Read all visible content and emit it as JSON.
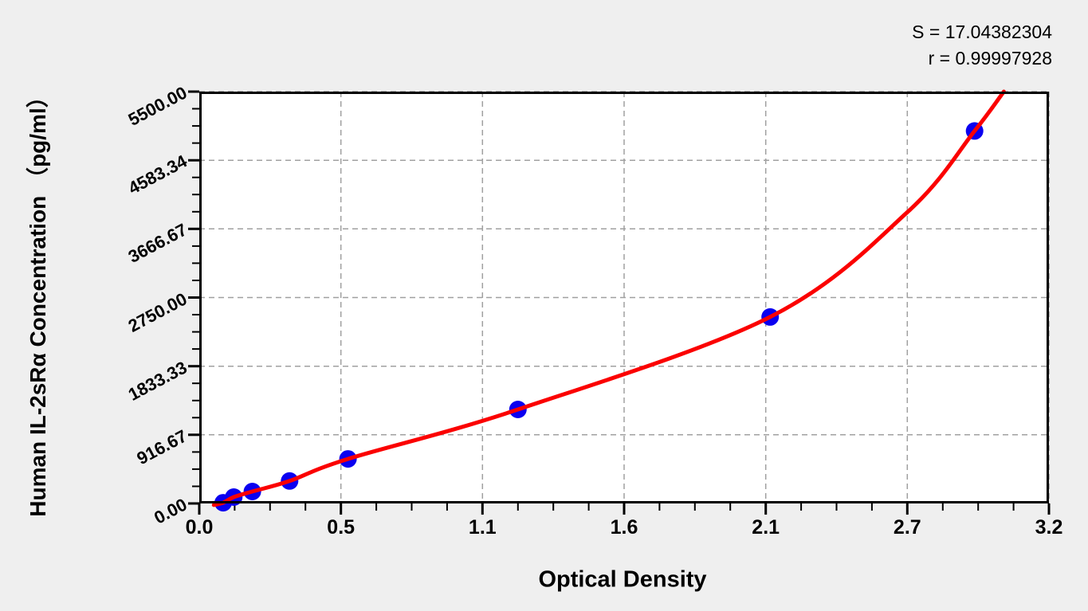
{
  "page": {
    "background_color": "#efefef",
    "plot_background_color": "#ffffff"
  },
  "chart_data": {
    "type": "scatter",
    "title": "",
    "xlabel": "Optical Density",
    "ylabel": "Human IL-2sRα Concentration （pg/ml）",
    "xlim": [
      0,
      3.2
    ],
    "ylim": [
      0,
      5500
    ],
    "x_ticks": {
      "values": [
        0,
        0.5333,
        1.0667,
        1.6,
        2.1333,
        2.6667,
        3.2
      ],
      "labels": [
        "0.0",
        "0.5",
        "1.1",
        "1.6",
        "2.1",
        "2.7",
        "3.2"
      ]
    },
    "y_ticks": {
      "values": [
        0,
        916.67,
        1833.33,
        2750,
        3666.67,
        4583.34,
        5500
      ],
      "labels": [
        "0.00",
        "916.67",
        "1833.33",
        "2750.00",
        "3666.67",
        "4583.34",
        "5500.00"
      ]
    },
    "minor_ticks_per_interval": 3,
    "grid": {
      "show": true,
      "style": "dashed",
      "color": "#a0a0a0",
      "at": "major-ticks"
    },
    "legend": null,
    "series": [
      {
        "name": "standard-points",
        "marker": "circle",
        "marker_radius": 11,
        "color": "#0b00f0",
        "points": [
          {
            "od": 0.09,
            "conc": 10
          },
          {
            "od": 0.13,
            "conc": 85
          },
          {
            "od": 0.2,
            "conc": 160
          },
          {
            "od": 0.34,
            "conc": 300
          },
          {
            "od": 0.56,
            "conc": 595
          },
          {
            "od": 1.2,
            "conc": 1255
          },
          {
            "od": 2.15,
            "conc": 2490
          },
          {
            "od": 2.92,
            "conc": 4975
          }
        ]
      }
    ],
    "fit_curve": {
      "name": "fitted-standard-curve",
      "color": "#fb0000",
      "width": 5,
      "extra_path_points": [
        {
          "od": 0.055,
          "conc": -20
        },
        {
          "od": 2.67,
          "conc": 3900
        },
        {
          "od": 3.03,
          "conc": 5500
        }
      ]
    },
    "annotations": {
      "s": "S = 17.04382304",
      "r": "r = 0.99997928"
    },
    "stats": {
      "S": "17.04382304",
      "r": "0.99997928"
    }
  }
}
